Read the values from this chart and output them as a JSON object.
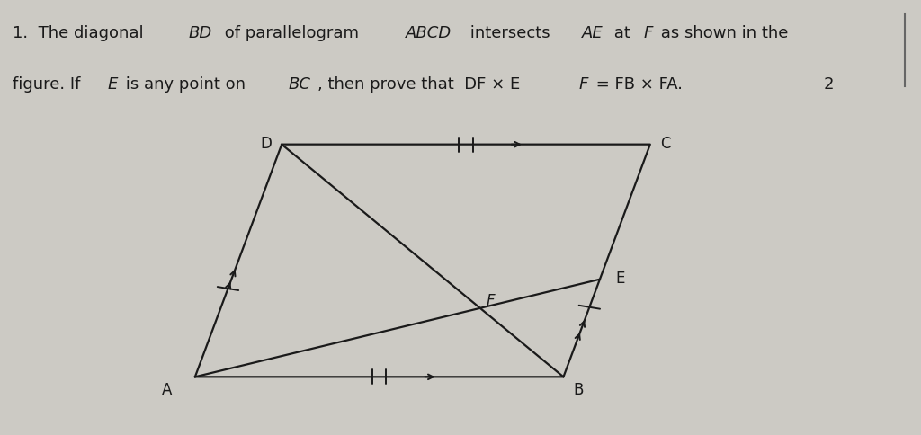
{
  "A": [
    1.8,
    0.3
  ],
  "B": [
    5.2,
    0.3
  ],
  "C": [
    6.0,
    3.5
  ],
  "D": [
    2.6,
    3.5
  ],
  "E_t": 0.42,
  "bg_color": "#cccac4",
  "line_color": "#1a1a1a",
  "label_color": "#1a1a1a",
  "fontsize_labels": 12,
  "fontsize_text": 13,
  "fig_width": 10.24,
  "fig_height": 4.85,
  "xlim": [
    0.0,
    8.5
  ],
  "ylim": [
    -0.5,
    5.5
  ]
}
